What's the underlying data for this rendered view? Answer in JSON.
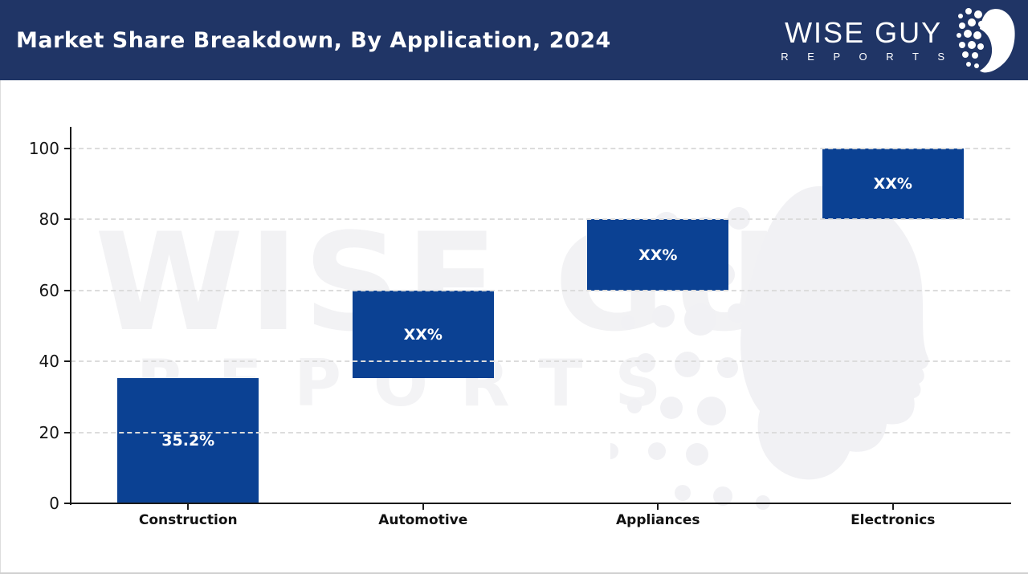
{
  "header": {
    "title": "Market Share Breakdown, By Application, 2024",
    "bg_color": "#203566",
    "logo": {
      "line1": "WISE GUY",
      "line2": "R E P O R T S"
    }
  },
  "watermark": {
    "line1": "WISE GUY",
    "line2": "REPORTS"
  },
  "chart_data": {
    "type": "bar",
    "subtype": "waterfall",
    "title": "Market Share Breakdown, By Application, 2024",
    "categories": [
      "Construction",
      "Automotive",
      "Appliances",
      "Electronics"
    ],
    "segments": [
      {
        "category": "Construction",
        "start": 0,
        "end": 35.2,
        "label": "35.2%"
      },
      {
        "category": "Automotive",
        "start": 35.2,
        "end": 60,
        "label": "XX%"
      },
      {
        "category": "Appliances",
        "start": 60,
        "end": 80,
        "label": "XX%"
      },
      {
        "category": "Electronics",
        "start": 80,
        "end": 100,
        "label": "XX%"
      }
    ],
    "yticks": [
      0,
      20,
      40,
      60,
      80,
      100
    ],
    "ylim": [
      0,
      105
    ],
    "grid": true,
    "grid_style": "dashed",
    "bar_color": "#0b4193",
    "label_color": "#ffffff",
    "xlabel": "",
    "ylabel": ""
  }
}
